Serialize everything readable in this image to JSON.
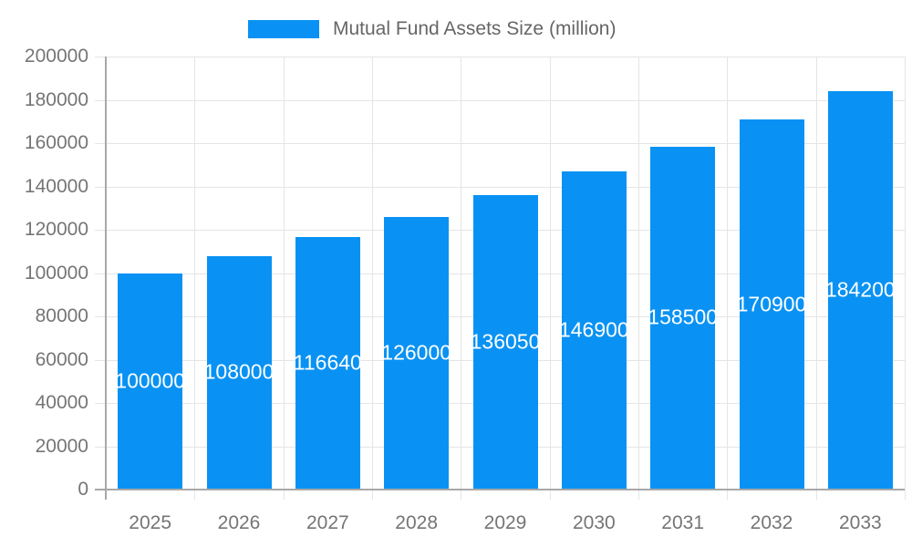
{
  "chart_data": {
    "type": "bar",
    "title": "Mutual Fund Assets Size (million)",
    "legend": [
      "Mutual Fund Assets Size (million)"
    ],
    "legend_position": "top",
    "categories": [
      "2025",
      "2026",
      "2027",
      "2028",
      "2029",
      "2030",
      "2031",
      "2032",
      "2033"
    ],
    "values": [
      100000,
      108000,
      116640,
      126000,
      136050,
      146900,
      158500,
      170900,
      184200
    ],
    "bar_labels": [
      "100000",
      "108000",
      "116640",
      "126000",
      "136050",
      "146900",
      "158500",
      "170900",
      "184200"
    ],
    "xlabel": "",
    "ylabel": "",
    "ylim": [
      0,
      200000
    ],
    "ytick_step": 20000,
    "ytick_labels": [
      "0",
      "20000",
      "40000",
      "60000",
      "80000",
      "100000",
      "120000",
      "140000",
      "160000",
      "180000",
      "200000"
    ],
    "grid": true,
    "colors": {
      "bar": "#0992f3",
      "grid": "#e5e5e5",
      "axis": "#a8a8a8",
      "tick_text": "#757575",
      "legend_text": "#666666",
      "value_label": "#ffffff",
      "background": "#ffffff"
    }
  }
}
